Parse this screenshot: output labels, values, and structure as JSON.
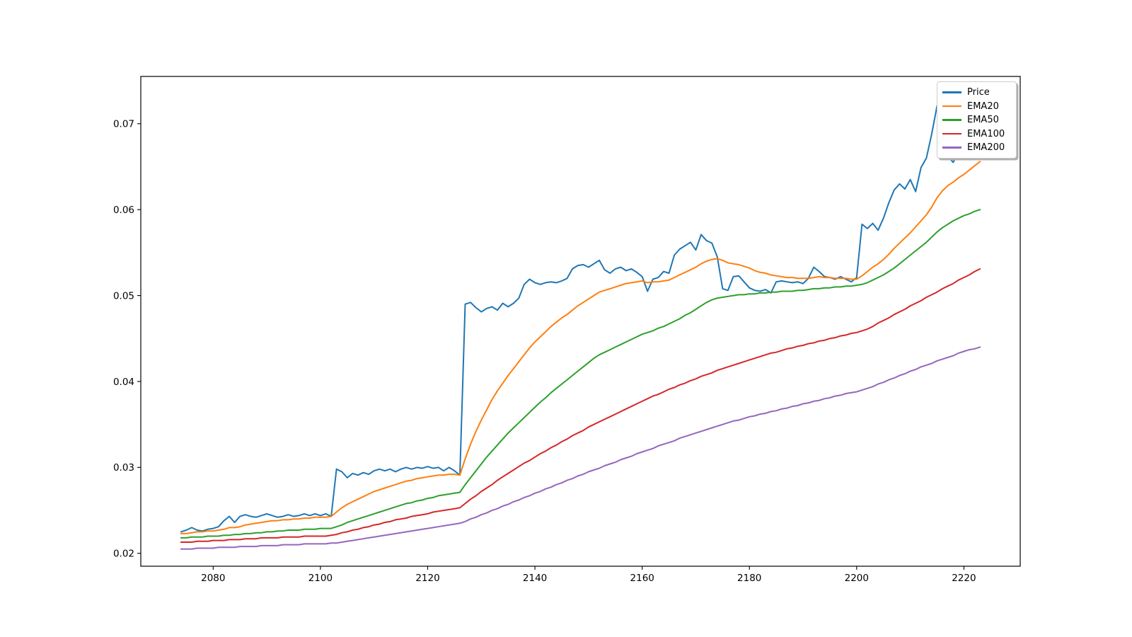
{
  "figure": {
    "background": "#ffffff",
    "title": ""
  },
  "chart_data": {
    "type": "line",
    "title": "",
    "xlabel": "",
    "ylabel": "",
    "grid": false,
    "legend_position": "upper right",
    "xlim": [
      2066.5,
      2230.5
    ],
    "ylim": [
      0.0185,
      0.0755
    ],
    "x_ticks": [
      2080,
      2100,
      2120,
      2140,
      2160,
      2180,
      2200,
      2220
    ],
    "y_ticks": [
      "0.02",
      "0.03",
      "0.04",
      "0.05",
      "0.06",
      "0.07"
    ],
    "x": [
      2074,
      2075,
      2076,
      2077,
      2078,
      2079,
      2080,
      2081,
      2082,
      2083,
      2084,
      2085,
      2086,
      2087,
      2088,
      2089,
      2090,
      2091,
      2092,
      2093,
      2094,
      2095,
      2096,
      2097,
      2098,
      2099,
      2100,
      2101,
      2102,
      2103,
      2104,
      2105,
      2106,
      2107,
      2108,
      2109,
      2110,
      2111,
      2112,
      2113,
      2114,
      2115,
      2116,
      2117,
      2118,
      2119,
      2120,
      2121,
      2122,
      2123,
      2124,
      2125,
      2126,
      2127,
      2128,
      2129,
      2130,
      2131,
      2132,
      2133,
      2134,
      2135,
      2136,
      2137,
      2138,
      2139,
      2140,
      2141,
      2142,
      2143,
      2144,
      2145,
      2146,
      2147,
      2148,
      2149,
      2150,
      2151,
      2152,
      2153,
      2154,
      2155,
      2156,
      2157,
      2158,
      2159,
      2160,
      2161,
      2162,
      2163,
      2164,
      2165,
      2166,
      2167,
      2168,
      2169,
      2170,
      2171,
      2172,
      2173,
      2174,
      2175,
      2176,
      2177,
      2178,
      2179,
      2180,
      2181,
      2182,
      2183,
      2184,
      2185,
      2186,
      2187,
      2188,
      2189,
      2190,
      2191,
      2192,
      2193,
      2194,
      2195,
      2196,
      2197,
      2198,
      2199,
      2200,
      2201,
      2202,
      2203,
      2204,
      2205,
      2206,
      2207,
      2208,
      2209,
      2210,
      2211,
      2212,
      2213,
      2214,
      2215,
      2216,
      2217,
      2218,
      2219,
      2220,
      2221,
      2222,
      2223
    ],
    "series": [
      {
        "name": "Price",
        "color": "#1f77b4",
        "values": [
          0.0225,
          0.0227,
          0.023,
          0.0227,
          0.0226,
          0.0228,
          0.0229,
          0.0231,
          0.0238,
          0.0243,
          0.0236,
          0.0243,
          0.0245,
          0.0243,
          0.0242,
          0.0244,
          0.0246,
          0.0244,
          0.0242,
          0.0243,
          0.0245,
          0.0243,
          0.0244,
          0.0246,
          0.0244,
          0.0246,
          0.0244,
          0.0246,
          0.0243,
          0.0298,
          0.0295,
          0.0288,
          0.0293,
          0.0291,
          0.0294,
          0.0292,
          0.0296,
          0.0298,
          0.0296,
          0.0298,
          0.0295,
          0.0298,
          0.03,
          0.0298,
          0.03,
          0.0299,
          0.0301,
          0.0299,
          0.03,
          0.0296,
          0.03,
          0.0296,
          0.0291,
          0.049,
          0.0492,
          0.0486,
          0.0481,
          0.0485,
          0.0487,
          0.0483,
          0.0491,
          0.0487,
          0.0491,
          0.0497,
          0.0513,
          0.0519,
          0.0515,
          0.0513,
          0.0515,
          0.0516,
          0.0515,
          0.0517,
          0.052,
          0.0531,
          0.0535,
          0.0536,
          0.0533,
          0.0537,
          0.0541,
          0.053,
          0.0526,
          0.0531,
          0.0533,
          0.0529,
          0.0531,
          0.0527,
          0.0522,
          0.0505,
          0.0519,
          0.0521,
          0.0528,
          0.0526,
          0.0547,
          0.0554,
          0.0558,
          0.0562,
          0.0553,
          0.0571,
          0.0564,
          0.0561,
          0.0545,
          0.0508,
          0.0506,
          0.0522,
          0.0523,
          0.0516,
          0.0509,
          0.0506,
          0.0505,
          0.0507,
          0.0503,
          0.0516,
          0.0517,
          0.0516,
          0.0515,
          0.0516,
          0.0514,
          0.052,
          0.0533,
          0.0528,
          0.0522,
          0.0521,
          0.0519,
          0.0522,
          0.0519,
          0.0516,
          0.0521,
          0.0583,
          0.0578,
          0.0584,
          0.0576,
          0.059,
          0.0608,
          0.0623,
          0.063,
          0.0624,
          0.0635,
          0.0621,
          0.0649,
          0.066,
          0.0688,
          0.0721,
          0.0702,
          0.0662,
          0.0655,
          0.0667,
          0.0661,
          0.0669,
          0.0667,
          0.0672
        ]
      },
      {
        "name": "EMA20",
        "color": "#ff7f0e",
        "values": [
          0.0223,
          0.0223,
          0.0224,
          0.0225,
          0.0225,
          0.0226,
          0.0226,
          0.0227,
          0.0228,
          0.023,
          0.023,
          0.0231,
          0.0233,
          0.0234,
          0.0235,
          0.0236,
          0.0237,
          0.0238,
          0.0238,
          0.0239,
          0.0239,
          0.024,
          0.024,
          0.0241,
          0.0241,
          0.0242,
          0.0242,
          0.0242,
          0.0243,
          0.0248,
          0.0253,
          0.0257,
          0.026,
          0.0263,
          0.0266,
          0.0269,
          0.0272,
          0.0274,
          0.0276,
          0.0278,
          0.028,
          0.0282,
          0.0284,
          0.0285,
          0.0287,
          0.0288,
          0.0289,
          0.029,
          0.0291,
          0.0291,
          0.0292,
          0.0292,
          0.0291,
          0.031,
          0.0327,
          0.0342,
          0.0355,
          0.0367,
          0.0379,
          0.0389,
          0.0398,
          0.0407,
          0.0415,
          0.0423,
          0.0431,
          0.0439,
          0.0446,
          0.0452,
          0.0458,
          0.0464,
          0.0469,
          0.0474,
          0.0478,
          0.0483,
          0.0488,
          0.0492,
          0.0496,
          0.05,
          0.0504,
          0.0506,
          0.0508,
          0.051,
          0.0512,
          0.0514,
          0.0515,
          0.0516,
          0.0517,
          0.0515,
          0.0516,
          0.0516,
          0.0517,
          0.0518,
          0.0521,
          0.0524,
          0.0527,
          0.053,
          0.0533,
          0.0537,
          0.054,
          0.0542,
          0.0543,
          0.0541,
          0.0538,
          0.0537,
          0.0536,
          0.0534,
          0.0532,
          0.0529,
          0.0527,
          0.0526,
          0.0524,
          0.0523,
          0.0522,
          0.0521,
          0.0521,
          0.052,
          0.052,
          0.052,
          0.0521,
          0.0522,
          0.0521,
          0.0521,
          0.052,
          0.052,
          0.052,
          0.0519,
          0.0519,
          0.0523,
          0.0528,
          0.0533,
          0.0537,
          0.0542,
          0.0548,
          0.0555,
          0.0561,
          0.0567,
          0.0573,
          0.058,
          0.0587,
          0.0594,
          0.0603,
          0.0614,
          0.0622,
          0.0628,
          0.0632,
          0.0637,
          0.0641,
          0.0646,
          0.0651,
          0.0656
        ]
      },
      {
        "name": "EMA50",
        "color": "#2ca02c",
        "values": [
          0.0218,
          0.0218,
          0.0219,
          0.0219,
          0.0219,
          0.022,
          0.022,
          0.022,
          0.0221,
          0.0221,
          0.0222,
          0.0222,
          0.0223,
          0.0223,
          0.0224,
          0.0224,
          0.0225,
          0.0225,
          0.0226,
          0.0226,
          0.0227,
          0.0227,
          0.0227,
          0.0228,
          0.0228,
          0.0228,
          0.0229,
          0.0229,
          0.0229,
          0.0231,
          0.0233,
          0.0236,
          0.0238,
          0.024,
          0.0242,
          0.0244,
          0.0246,
          0.0248,
          0.025,
          0.0252,
          0.0254,
          0.0256,
          0.0258,
          0.0259,
          0.0261,
          0.0262,
          0.0264,
          0.0265,
          0.0267,
          0.0268,
          0.0269,
          0.027,
          0.0271,
          0.028,
          0.0288,
          0.0296,
          0.0304,
          0.0312,
          0.0319,
          0.0326,
          0.0333,
          0.034,
          0.0346,
          0.0352,
          0.0358,
          0.0364,
          0.037,
          0.0376,
          0.0381,
          0.0387,
          0.0392,
          0.0397,
          0.0402,
          0.0407,
          0.0412,
          0.0417,
          0.0422,
          0.0427,
          0.0431,
          0.0434,
          0.0437,
          0.044,
          0.0443,
          0.0446,
          0.0449,
          0.0452,
          0.0455,
          0.0457,
          0.0459,
          0.0462,
          0.0464,
          0.0467,
          0.047,
          0.0473,
          0.0477,
          0.048,
          0.0484,
          0.0488,
          0.0492,
          0.0495,
          0.0497,
          0.0498,
          0.0499,
          0.05,
          0.0501,
          0.0501,
          0.0502,
          0.0502,
          0.0503,
          0.0503,
          0.0504,
          0.0504,
          0.0505,
          0.0505,
          0.0505,
          0.0506,
          0.0506,
          0.0507,
          0.0508,
          0.0508,
          0.0509,
          0.0509,
          0.051,
          0.051,
          0.0511,
          0.0511,
          0.0512,
          0.0513,
          0.0515,
          0.0518,
          0.0521,
          0.0524,
          0.0528,
          0.0532,
          0.0537,
          0.0542,
          0.0547,
          0.0552,
          0.0557,
          0.0562,
          0.0568,
          0.0574,
          0.0579,
          0.0583,
          0.0587,
          0.059,
          0.0593,
          0.0595,
          0.0598,
          0.06
        ]
      },
      {
        "name": "EMA100",
        "color": "#d62728",
        "values": [
          0.0213,
          0.0213,
          0.0213,
          0.0214,
          0.0214,
          0.0214,
          0.0215,
          0.0215,
          0.0215,
          0.0216,
          0.0216,
          0.0216,
          0.0217,
          0.0217,
          0.0217,
          0.0218,
          0.0218,
          0.0218,
          0.0218,
          0.0219,
          0.0219,
          0.0219,
          0.0219,
          0.022,
          0.022,
          0.022,
          0.022,
          0.022,
          0.0221,
          0.0222,
          0.0224,
          0.0225,
          0.0227,
          0.0228,
          0.023,
          0.0231,
          0.0233,
          0.0234,
          0.0236,
          0.0237,
          0.0239,
          0.024,
          0.0241,
          0.0243,
          0.0244,
          0.0245,
          0.0246,
          0.0248,
          0.0249,
          0.025,
          0.0251,
          0.0252,
          0.0253,
          0.0258,
          0.0263,
          0.0267,
          0.0272,
          0.0276,
          0.028,
          0.0285,
          0.0289,
          0.0293,
          0.0297,
          0.0301,
          0.0305,
          0.0308,
          0.0312,
          0.0316,
          0.0319,
          0.0323,
          0.0326,
          0.033,
          0.0333,
          0.0337,
          0.034,
          0.0343,
          0.0347,
          0.035,
          0.0353,
          0.0356,
          0.0359,
          0.0362,
          0.0365,
          0.0368,
          0.0371,
          0.0374,
          0.0377,
          0.038,
          0.0383,
          0.0385,
          0.0388,
          0.0391,
          0.0393,
          0.0396,
          0.0398,
          0.0401,
          0.0403,
          0.0406,
          0.0408,
          0.041,
          0.0413,
          0.0415,
          0.0417,
          0.0419,
          0.0421,
          0.0423,
          0.0425,
          0.0427,
          0.0429,
          0.0431,
          0.0433,
          0.0434,
          0.0436,
          0.0438,
          0.0439,
          0.0441,
          0.0442,
          0.0444,
          0.0445,
          0.0447,
          0.0448,
          0.045,
          0.0451,
          0.0453,
          0.0454,
          0.0456,
          0.0457,
          0.0459,
          0.0461,
          0.0464,
          0.0468,
          0.0471,
          0.0474,
          0.0478,
          0.0481,
          0.0484,
          0.0488,
          0.0491,
          0.0494,
          0.0498,
          0.0501,
          0.0504,
          0.0508,
          0.0511,
          0.0514,
          0.0518,
          0.0521,
          0.0524,
          0.0528,
          0.0531
        ]
      },
      {
        "name": "EMA200",
        "color": "#9467bd",
        "values": [
          0.0205,
          0.0205,
          0.0205,
          0.0206,
          0.0206,
          0.0206,
          0.0206,
          0.0207,
          0.0207,
          0.0207,
          0.0207,
          0.0208,
          0.0208,
          0.0208,
          0.0208,
          0.0209,
          0.0209,
          0.0209,
          0.0209,
          0.021,
          0.021,
          0.021,
          0.021,
          0.0211,
          0.0211,
          0.0211,
          0.0211,
          0.0211,
          0.0212,
          0.0212,
          0.0213,
          0.0214,
          0.0215,
          0.0216,
          0.0217,
          0.0218,
          0.0219,
          0.022,
          0.0221,
          0.0222,
          0.0223,
          0.0224,
          0.0225,
          0.0226,
          0.0227,
          0.0228,
          0.0229,
          0.023,
          0.0231,
          0.0232,
          0.0233,
          0.0234,
          0.0235,
          0.0237,
          0.024,
          0.0242,
          0.0245,
          0.0247,
          0.025,
          0.0252,
          0.0255,
          0.0257,
          0.026,
          0.0262,
          0.0265,
          0.0267,
          0.027,
          0.0272,
          0.0275,
          0.0277,
          0.028,
          0.0282,
          0.0285,
          0.0287,
          0.029,
          0.0292,
          0.0295,
          0.0297,
          0.0299,
          0.0302,
          0.0304,
          0.0306,
          0.0309,
          0.0311,
          0.0313,
          0.0316,
          0.0318,
          0.032,
          0.0322,
          0.0325,
          0.0327,
          0.0329,
          0.0331,
          0.0334,
          0.0336,
          0.0338,
          0.034,
          0.0342,
          0.0344,
          0.0346,
          0.0348,
          0.035,
          0.0352,
          0.0354,
          0.0355,
          0.0357,
          0.0359,
          0.036,
          0.0362,
          0.0363,
          0.0365,
          0.0366,
          0.0368,
          0.0369,
          0.0371,
          0.0372,
          0.0374,
          0.0375,
          0.0377,
          0.0378,
          0.038,
          0.0381,
          0.0383,
          0.0384,
          0.0386,
          0.0387,
          0.0388,
          0.039,
          0.0392,
          0.0394,
          0.0397,
          0.0399,
          0.0402,
          0.0404,
          0.0407,
          0.0409,
          0.0412,
          0.0414,
          0.0417,
          0.0419,
          0.0421,
          0.0424,
          0.0426,
          0.0428,
          0.043,
          0.0433,
          0.0435,
          0.0437,
          0.0438,
          0.044
        ]
      }
    ]
  }
}
